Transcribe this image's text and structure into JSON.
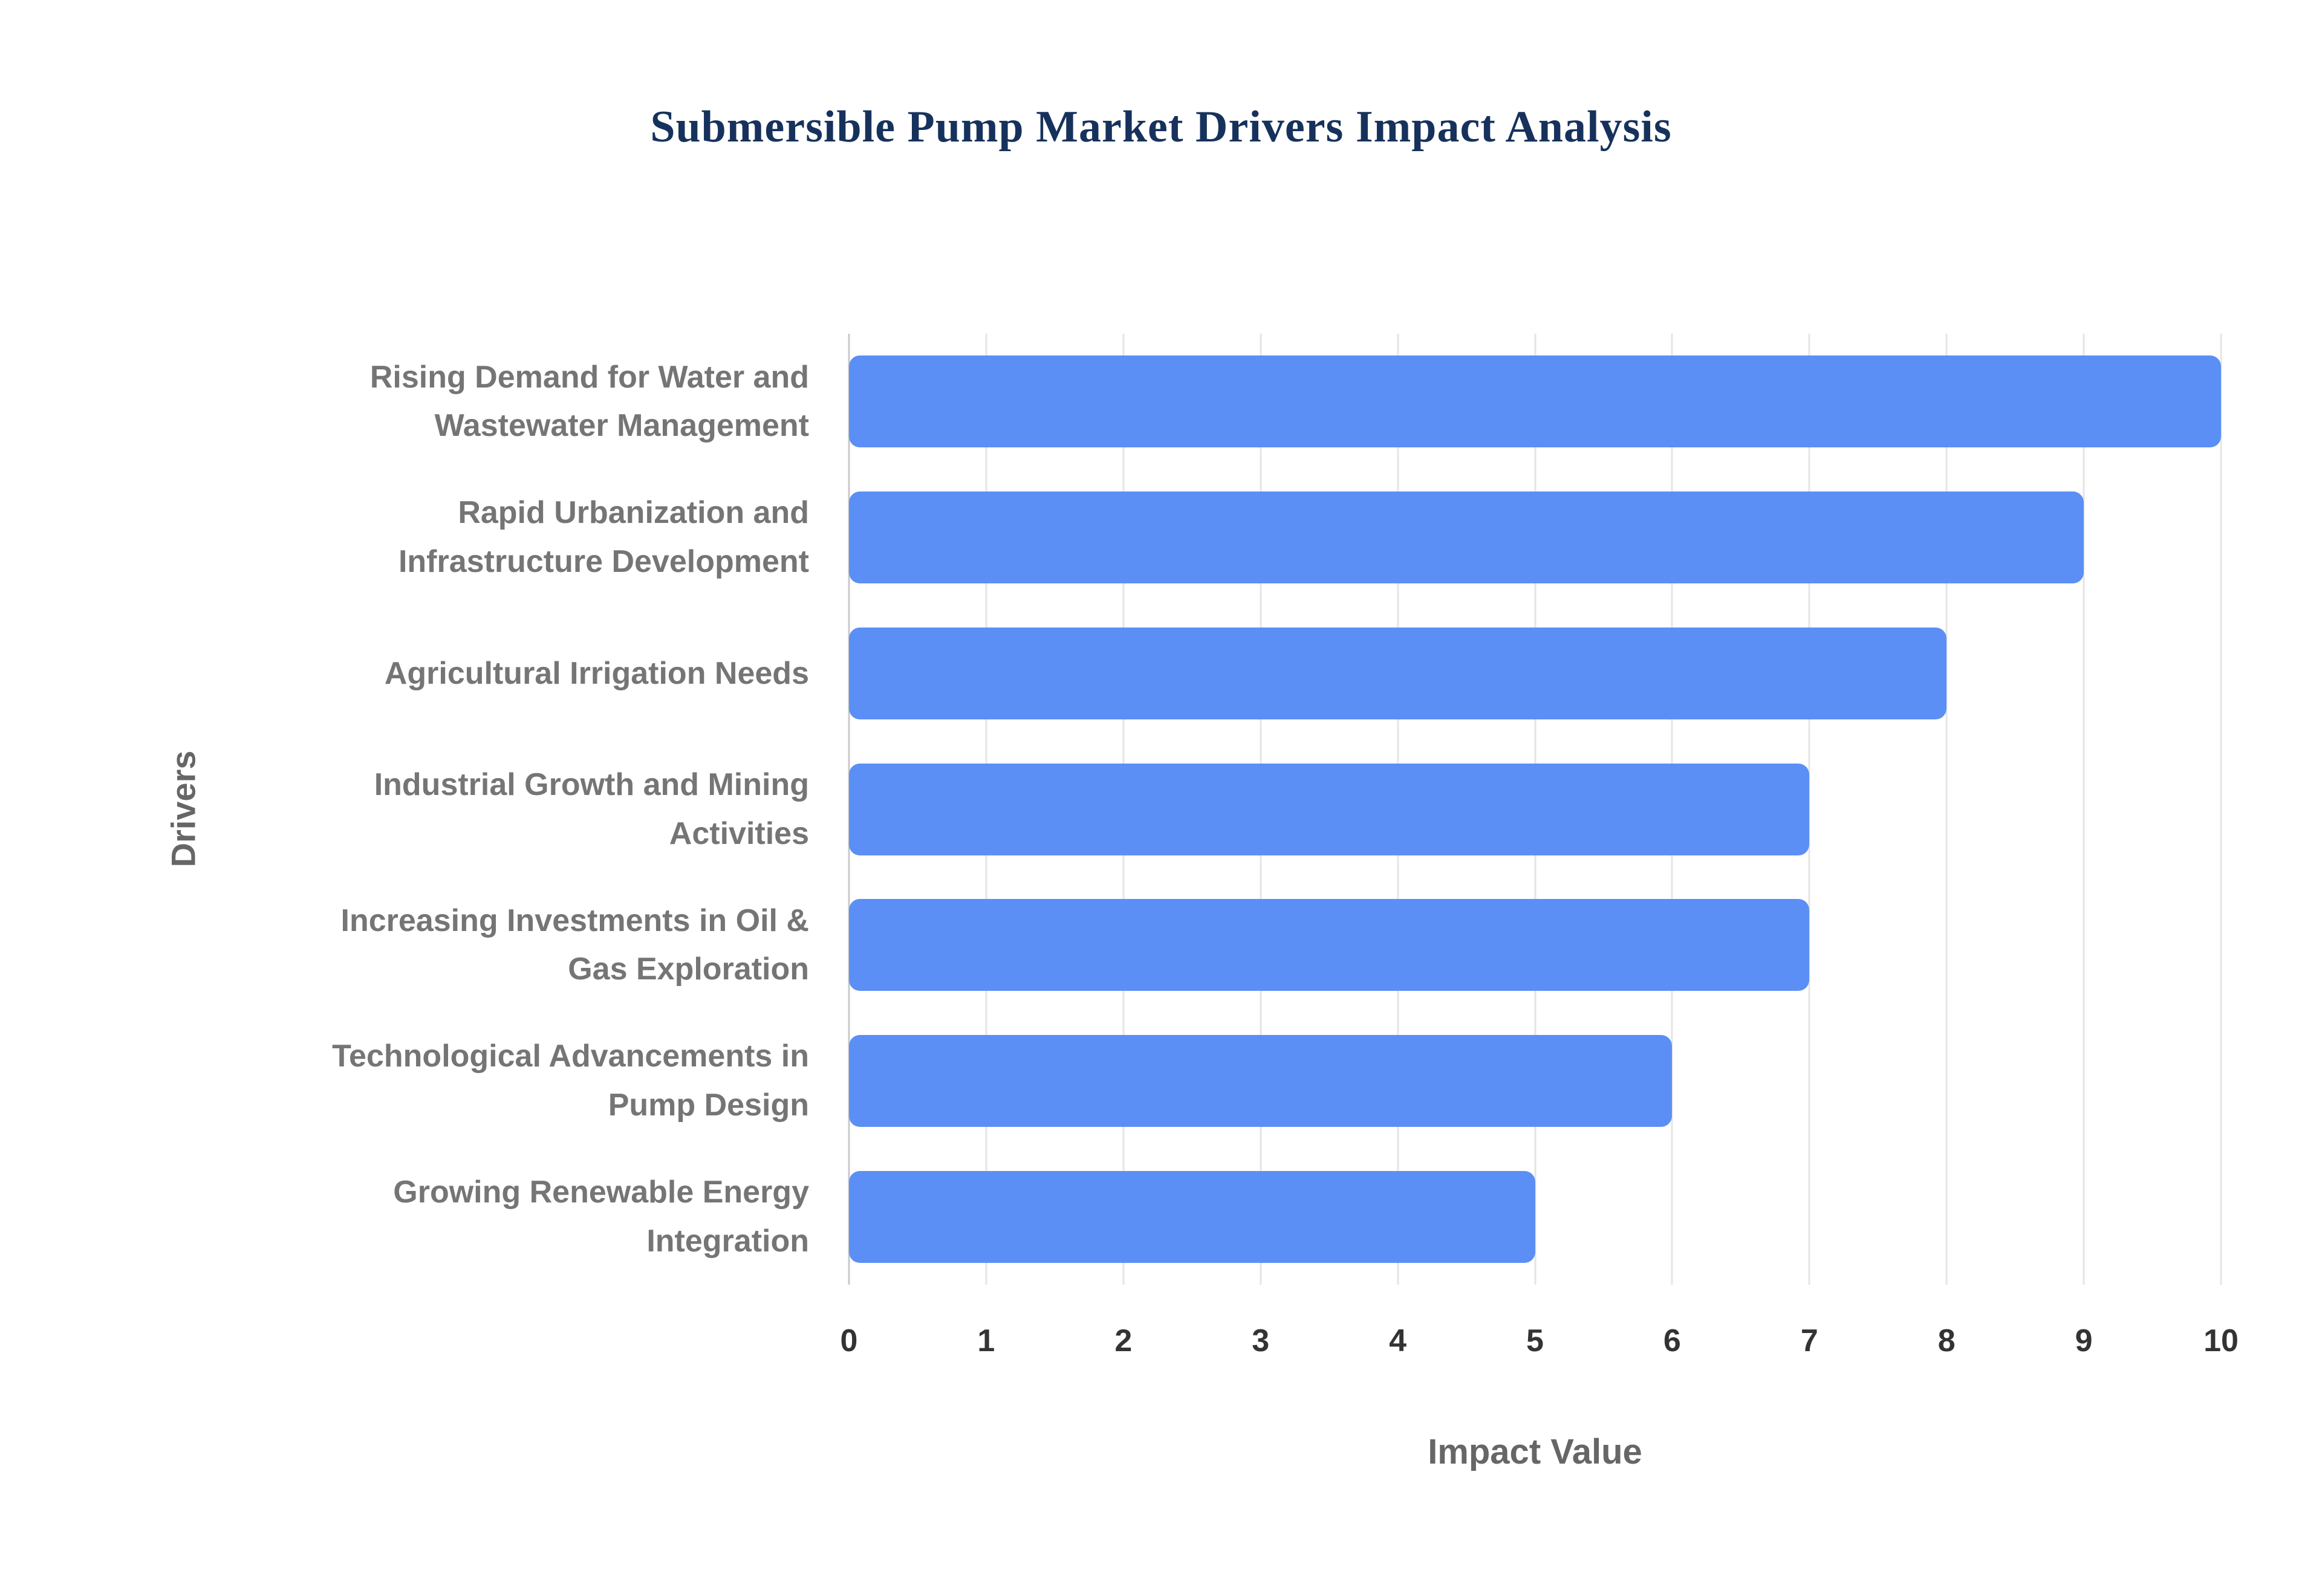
{
  "title": "Submersible Pump Market Drivers Impact Analysis",
  "chart_data": {
    "type": "bar",
    "orientation": "horizontal",
    "title": "Submersible Pump Market Drivers Impact Analysis",
    "categories": [
      "Rising Demand for Water and Wastewater Management",
      "Rapid Urbanization and Infrastructure Development",
      "Agricultural Irrigation Needs",
      "Industrial Growth and Mining Activities",
      "Increasing Investments in Oil & Gas Exploration",
      "Technological Advancements in Pump Design",
      "Growing Renewable Energy Integration"
    ],
    "values": [
      10,
      9,
      8,
      7,
      7,
      6,
      5
    ],
    "xlabel": "Impact Value",
    "ylabel": "Drivers",
    "xlim": [
      0,
      10
    ],
    "xticks": [
      0,
      1,
      2,
      3,
      4,
      5,
      6,
      7,
      8,
      9,
      10
    ],
    "grid": true,
    "legend": "none",
    "colors": {
      "bar": "#5B8FF5",
      "title": "#16325C",
      "category_label": "#757575",
      "tick_label": "#333333",
      "axis_title": "#666666",
      "gridline": "#e5e5e5",
      "axis_line": "#c9c9c9",
      "background": "#ffffff"
    }
  }
}
